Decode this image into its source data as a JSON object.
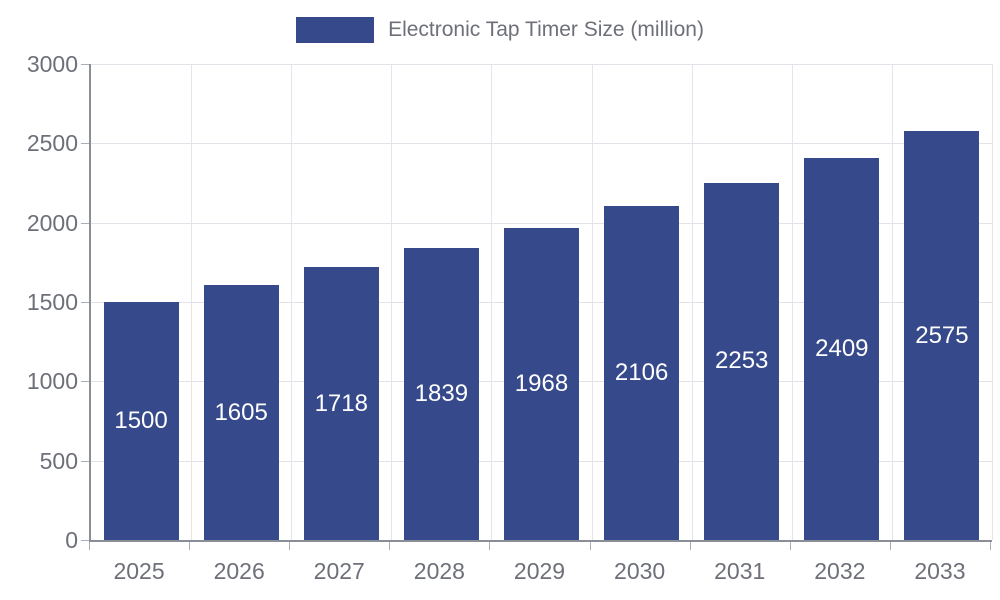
{
  "chart_data": {
    "type": "bar",
    "title": "Electronic Tap Timer Size (million)",
    "legend": {
      "label": "Electronic Tap Timer Size (million)",
      "position": "top-center"
    },
    "categories": [
      "2025",
      "2026",
      "2027",
      "2028",
      "2029",
      "2030",
      "2031",
      "2032",
      "2033"
    ],
    "series": [
      {
        "name": "Electronic Tap Timer Size (million)",
        "values": [
          1500,
          1605,
          1718,
          1839,
          1968,
          2106,
          2253,
          2409,
          2575
        ]
      }
    ],
    "value_labels_shown": true,
    "xlabel": "",
    "ylabel": "",
    "ylim": [
      0,
      3000
    ],
    "yticks": [
      0,
      500,
      1000,
      1500,
      2000,
      2500,
      3000
    ],
    "grid": true
  },
  "colors": {
    "bar": "#36498A",
    "value_label_text": "#FFFFFF",
    "axis_label_text": "#6E7079",
    "legend_text": "#6E7079",
    "axis_line": "#8A8E96",
    "gridline": "#E2E2E8",
    "background": "#FFFFFF"
  }
}
